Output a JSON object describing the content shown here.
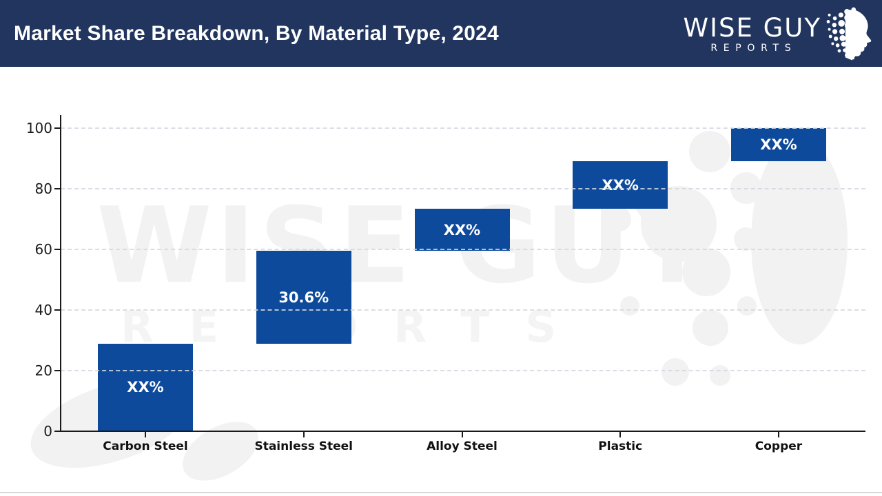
{
  "header": {
    "title": "Market Share Breakdown, By Material Type, 2024",
    "logo": {
      "line1": "WISE GUY",
      "line2": "REPORTS"
    },
    "bg_color": "#21355e"
  },
  "watermark": {
    "line1": "WISE GUY",
    "line2": "REPORTS"
  },
  "chart_data": {
    "type": "bar",
    "subtype": "waterfall",
    "title": "Market Share Breakdown, By Material Type, 2024",
    "categories": [
      "Carbon Steel",
      "Stainless Steel",
      "Alloy Steel",
      "Plastic",
      "Copper"
    ],
    "segments": [
      {
        "category": "Carbon Steel",
        "start": 0,
        "end": 28.9,
        "value": 28.9,
        "label": "XX%"
      },
      {
        "category": "Stainless Steel",
        "start": 28.9,
        "end": 59.5,
        "value": 30.6,
        "label": "30.6%"
      },
      {
        "category": "Alloy Steel",
        "start": 59.5,
        "end": 73.3,
        "value": 13.8,
        "label": "XX%"
      },
      {
        "category": "Plastic",
        "start": 73.3,
        "end": 89.1,
        "value": 15.8,
        "label": "XX%"
      },
      {
        "category": "Copper",
        "start": 89.1,
        "end": 100,
        "value": 10.9,
        "label": "XX%"
      }
    ],
    "yticks": [
      0,
      20,
      40,
      60,
      80,
      100
    ],
    "ylim": [
      0,
      104
    ],
    "xlabel": "",
    "ylabel": "",
    "bar_color": "#0d4a9c",
    "grid": "horizontal-dashed",
    "legend": "none"
  }
}
